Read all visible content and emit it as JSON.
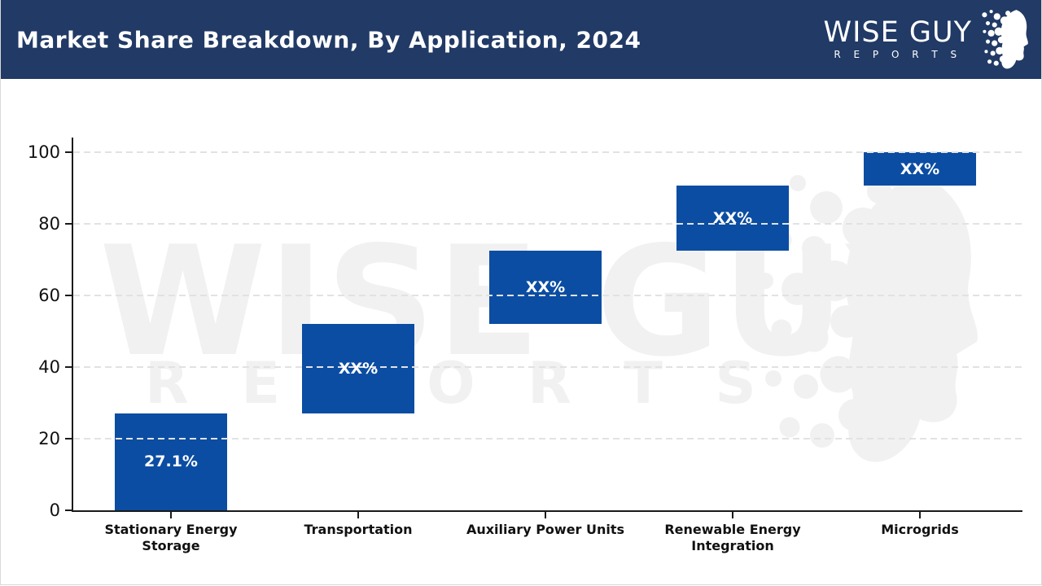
{
  "header": {
    "title": "Market Share Breakdown, By Application, 2024",
    "logo": {
      "brand": "WISE GUY",
      "sub": "R E P O R T S"
    }
  },
  "watermark": {
    "brand": "WISE GUY",
    "sub": "R E P O R T S"
  },
  "chart_data": {
    "type": "bar",
    "variant": "waterfall",
    "title": "Market Share Breakdown, By Application, 2024",
    "xlabel": "",
    "ylabel": "",
    "categories": [
      "Stationary Energy Storage",
      "Transportation",
      "Auxiliary Power Units",
      "Renewable Energy Integration",
      "Microgrids"
    ],
    "segments": [
      {
        "category": "Stationary Energy Storage",
        "label": "27.1%",
        "start": 0,
        "end": 27.1
      },
      {
        "category": "Transportation",
        "label": "XX%",
        "start": 27.1,
        "end": 52.1
      },
      {
        "category": "Auxiliary Power Units",
        "label": "XX%",
        "start": 52.1,
        "end": 72.4
      },
      {
        "category": "Renewable Energy Integration",
        "label": "XX%",
        "start": 72.4,
        "end": 90.6
      },
      {
        "category": "Microgrids",
        "label": "XX%",
        "start": 90.6,
        "end": 100
      }
    ],
    "yticks": [
      0,
      20,
      40,
      60,
      80,
      100
    ],
    "ylim": [
      0,
      104
    ],
    "grid": "horizontal-dashed",
    "legend": "none",
    "bar_color": "#0b4da2",
    "bar_label_color": "#ffffff",
    "axis_color": "#1a1a1a",
    "grid_color": "#e2e2e2"
  },
  "colors": {
    "header_bg": "#213a66",
    "watermark": "#f1f1f2",
    "frame_border": "#d9d9d9"
  }
}
